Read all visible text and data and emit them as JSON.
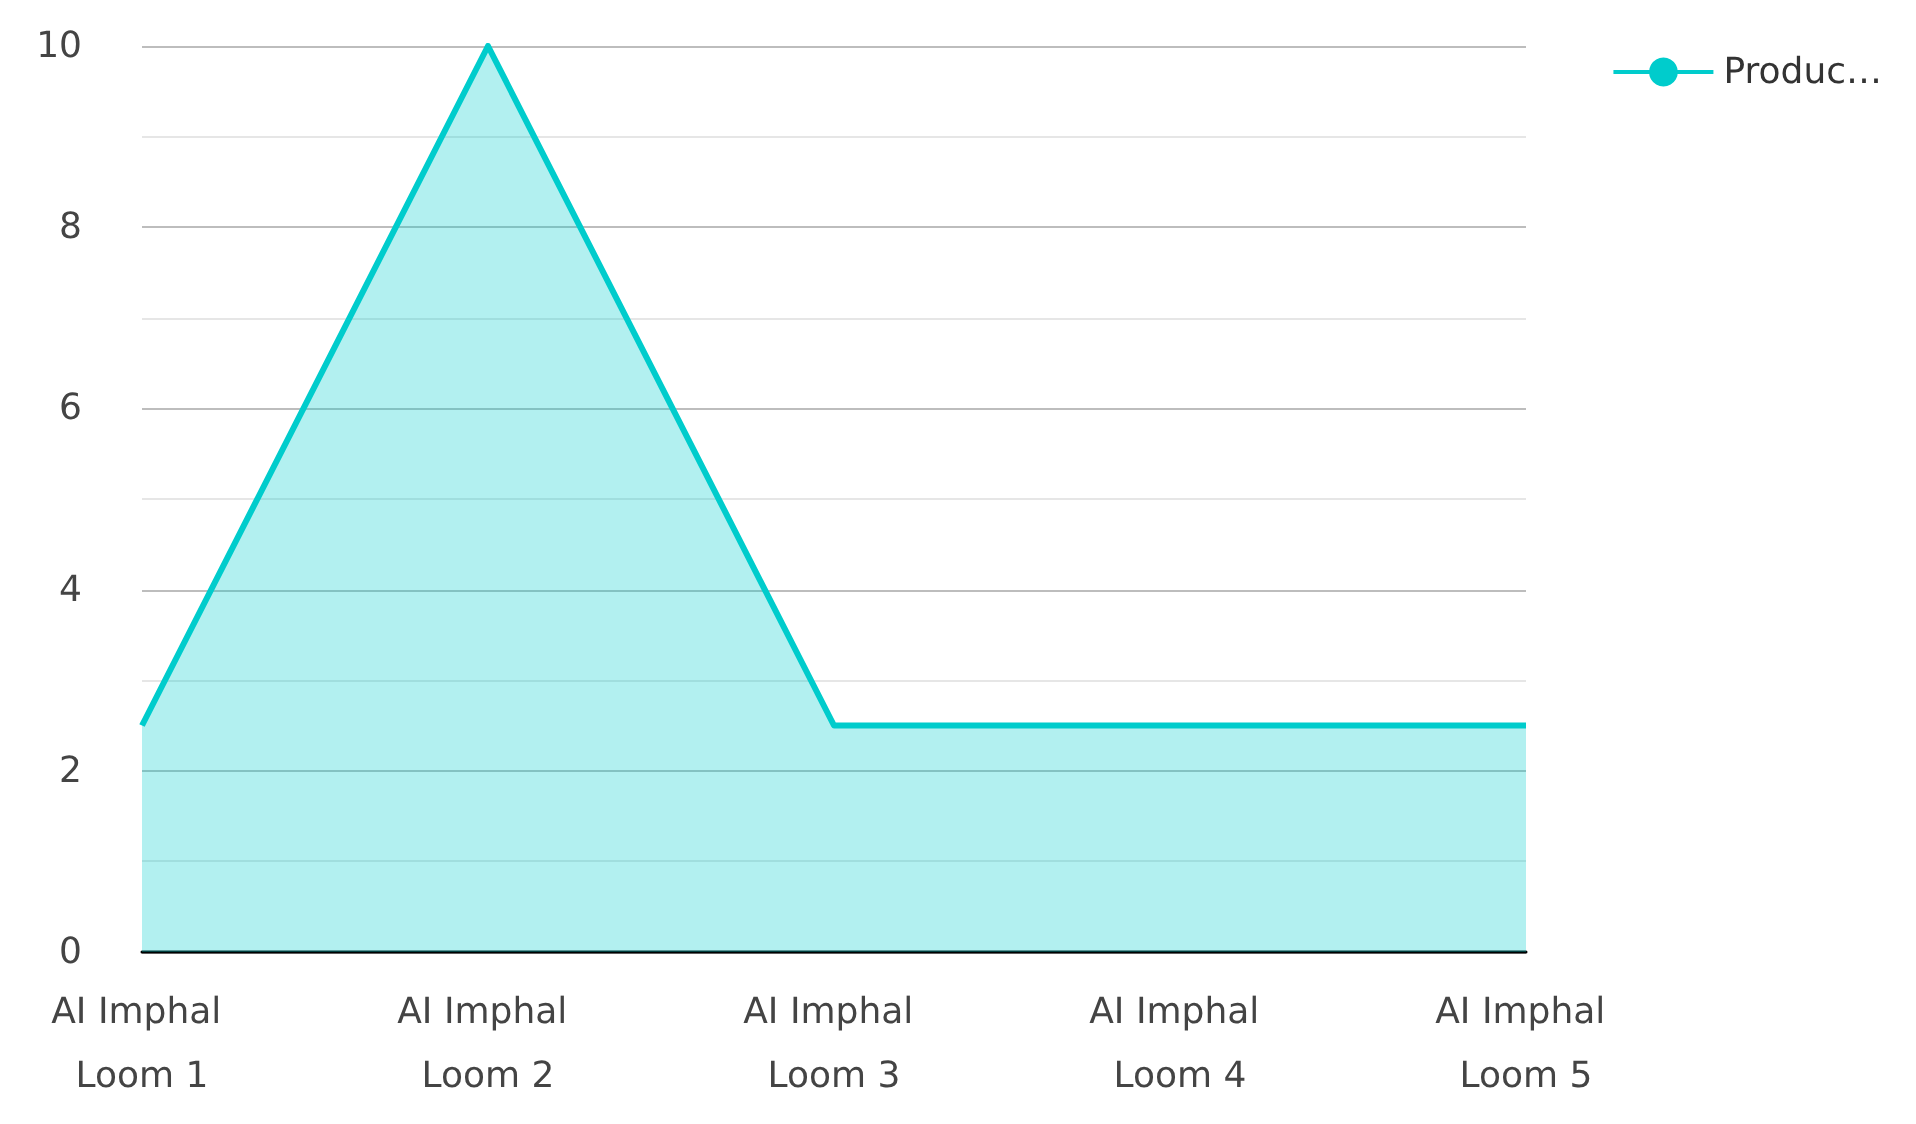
{
  "chart_data": {
    "type": "area",
    "categories": [
      "AI Imphal Loom 1",
      "AI Imphal Loom 2",
      "AI Imphal Loom 3",
      "AI Imphal Loom 4",
      "AI Imphal Loom 5"
    ],
    "series": [
      {
        "name": "Produc…",
        "color": "#00cccc",
        "values": [
          2.5,
          10,
          2.5,
          2.5,
          2.5
        ]
      }
    ],
    "ylim": [
      0,
      10
    ],
    "yticks": [
      0,
      {
        "value": 1,
        "label": null
      },
      2,
      {
        "value": 3,
        "label": null
      },
      4,
      {
        "value": 5,
        "label": null
      },
      6,
      {
        "value": 7,
        "label": null
      },
      8,
      {
        "value": 9,
        "label": null
      },
      10
    ],
    "grid": "y",
    "legend": "top right",
    "marker": "none"
  }
}
